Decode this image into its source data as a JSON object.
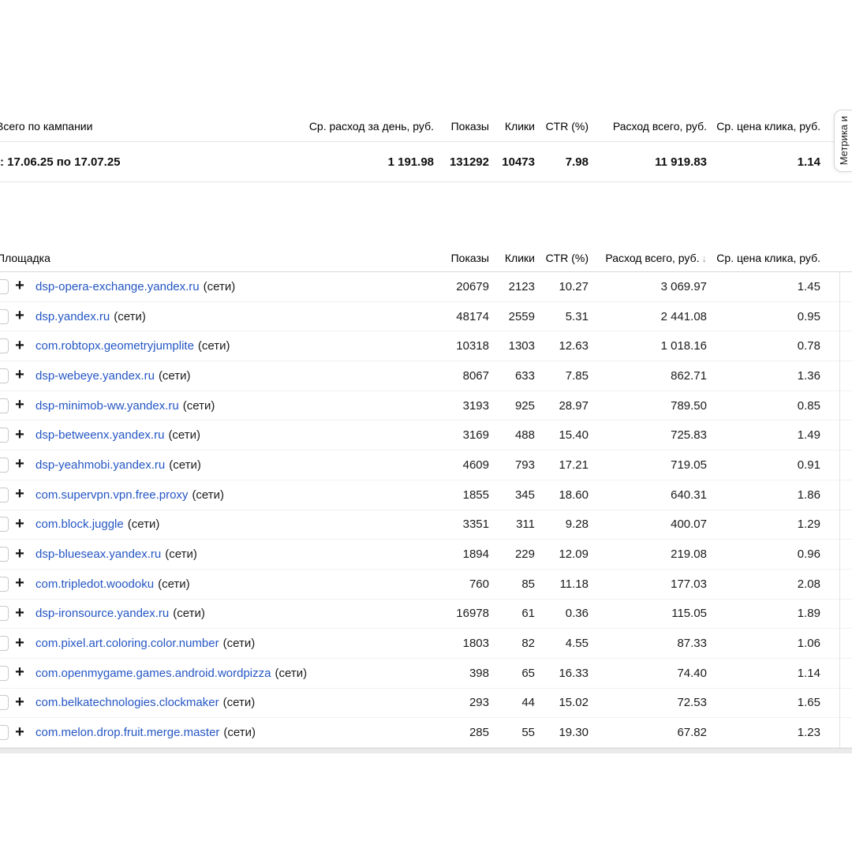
{
  "summary": {
    "title": "Всего по кампании",
    "period": ": 17.06.25 по 17.07.25",
    "columns": [
      "Ср. расход за день, руб.",
      "Показы",
      "Клики",
      "CTR (%)",
      "Расход всего, руб.",
      "Ср. цена клика, руб."
    ],
    "values": [
      "1 191.98",
      "131292",
      "10473",
      "7.98",
      "11 919.83",
      "1.14"
    ]
  },
  "metrika_tab": {
    "label": "Метрика и"
  },
  "platforms": {
    "name_column": "Площадка",
    "columns": [
      "Показы",
      "Клики",
      "CTR (%)",
      "Расход всего, руб.",
      "Ср. цена клика, руб."
    ],
    "sort_arrow": "↓",
    "expand_icon": "+",
    "suffix": "(сети)",
    "rows": [
      {
        "name": "dsp-opera-exchange.yandex.ru",
        "impressions": "20679",
        "clicks": "2123",
        "ctr": "10.27",
        "cost": "3 069.97",
        "cpc": "1.45"
      },
      {
        "name": "dsp.yandex.ru",
        "impressions": "48174",
        "clicks": "2559",
        "ctr": "5.31",
        "cost": "2 441.08",
        "cpc": "0.95"
      },
      {
        "name": "com.robtopx.geometryjumplite",
        "impressions": "10318",
        "clicks": "1303",
        "ctr": "12.63",
        "cost": "1 018.16",
        "cpc": "0.78"
      },
      {
        "name": "dsp-webeye.yandex.ru",
        "impressions": "8067",
        "clicks": "633",
        "ctr": "7.85",
        "cost": "862.71",
        "cpc": "1.36"
      },
      {
        "name": "dsp-minimob-ww.yandex.ru",
        "impressions": "3193",
        "clicks": "925",
        "ctr": "28.97",
        "cost": "789.50",
        "cpc": "0.85"
      },
      {
        "name": "dsp-betweenx.yandex.ru",
        "impressions": "3169",
        "clicks": "488",
        "ctr": "15.40",
        "cost": "725.83",
        "cpc": "1.49"
      },
      {
        "name": "dsp-yeahmobi.yandex.ru",
        "impressions": "4609",
        "clicks": "793",
        "ctr": "17.21",
        "cost": "719.05",
        "cpc": "0.91"
      },
      {
        "name": "com.supervpn.vpn.free.proxy",
        "impressions": "1855",
        "clicks": "345",
        "ctr": "18.60",
        "cost": "640.31",
        "cpc": "1.86"
      },
      {
        "name": "com.block.juggle",
        "impressions": "3351",
        "clicks": "311",
        "ctr": "9.28",
        "cost": "400.07",
        "cpc": "1.29"
      },
      {
        "name": "dsp-blueseax.yandex.ru",
        "impressions": "1894",
        "clicks": "229",
        "ctr": "12.09",
        "cost": "219.08",
        "cpc": "0.96"
      },
      {
        "name": "com.tripledot.woodoku",
        "impressions": "760",
        "clicks": "85",
        "ctr": "11.18",
        "cost": "177.03",
        "cpc": "2.08"
      },
      {
        "name": "dsp-ironsource.yandex.ru",
        "impressions": "16978",
        "clicks": "61",
        "ctr": "0.36",
        "cost": "115.05",
        "cpc": "1.89"
      },
      {
        "name": "com.pixel.art.coloring.color.number",
        "impressions": "1803",
        "clicks": "82",
        "ctr": "4.55",
        "cost": "87.33",
        "cpc": "1.06"
      },
      {
        "name": "com.openmygame.games.android.wordpizza",
        "impressions": "398",
        "clicks": "65",
        "ctr": "16.33",
        "cost": "74.40",
        "cpc": "1.14"
      },
      {
        "name": "com.belkatechnologies.clockmaker",
        "impressions": "293",
        "clicks": "44",
        "ctr": "15.02",
        "cost": "72.53",
        "cpc": "1.65"
      },
      {
        "name": "com.melon.drop.fruit.merge.master",
        "impressions": "285",
        "clicks": "55",
        "ctr": "19.30",
        "cost": "67.82",
        "cpc": "1.23"
      }
    ]
  },
  "colors": {
    "link_blue": "#2456c4",
    "text": "#1b1b1b",
    "divider": "#e6e6e6",
    "row_divider": "#f1f1f1",
    "bottom_strip": "#eaeaea"
  }
}
